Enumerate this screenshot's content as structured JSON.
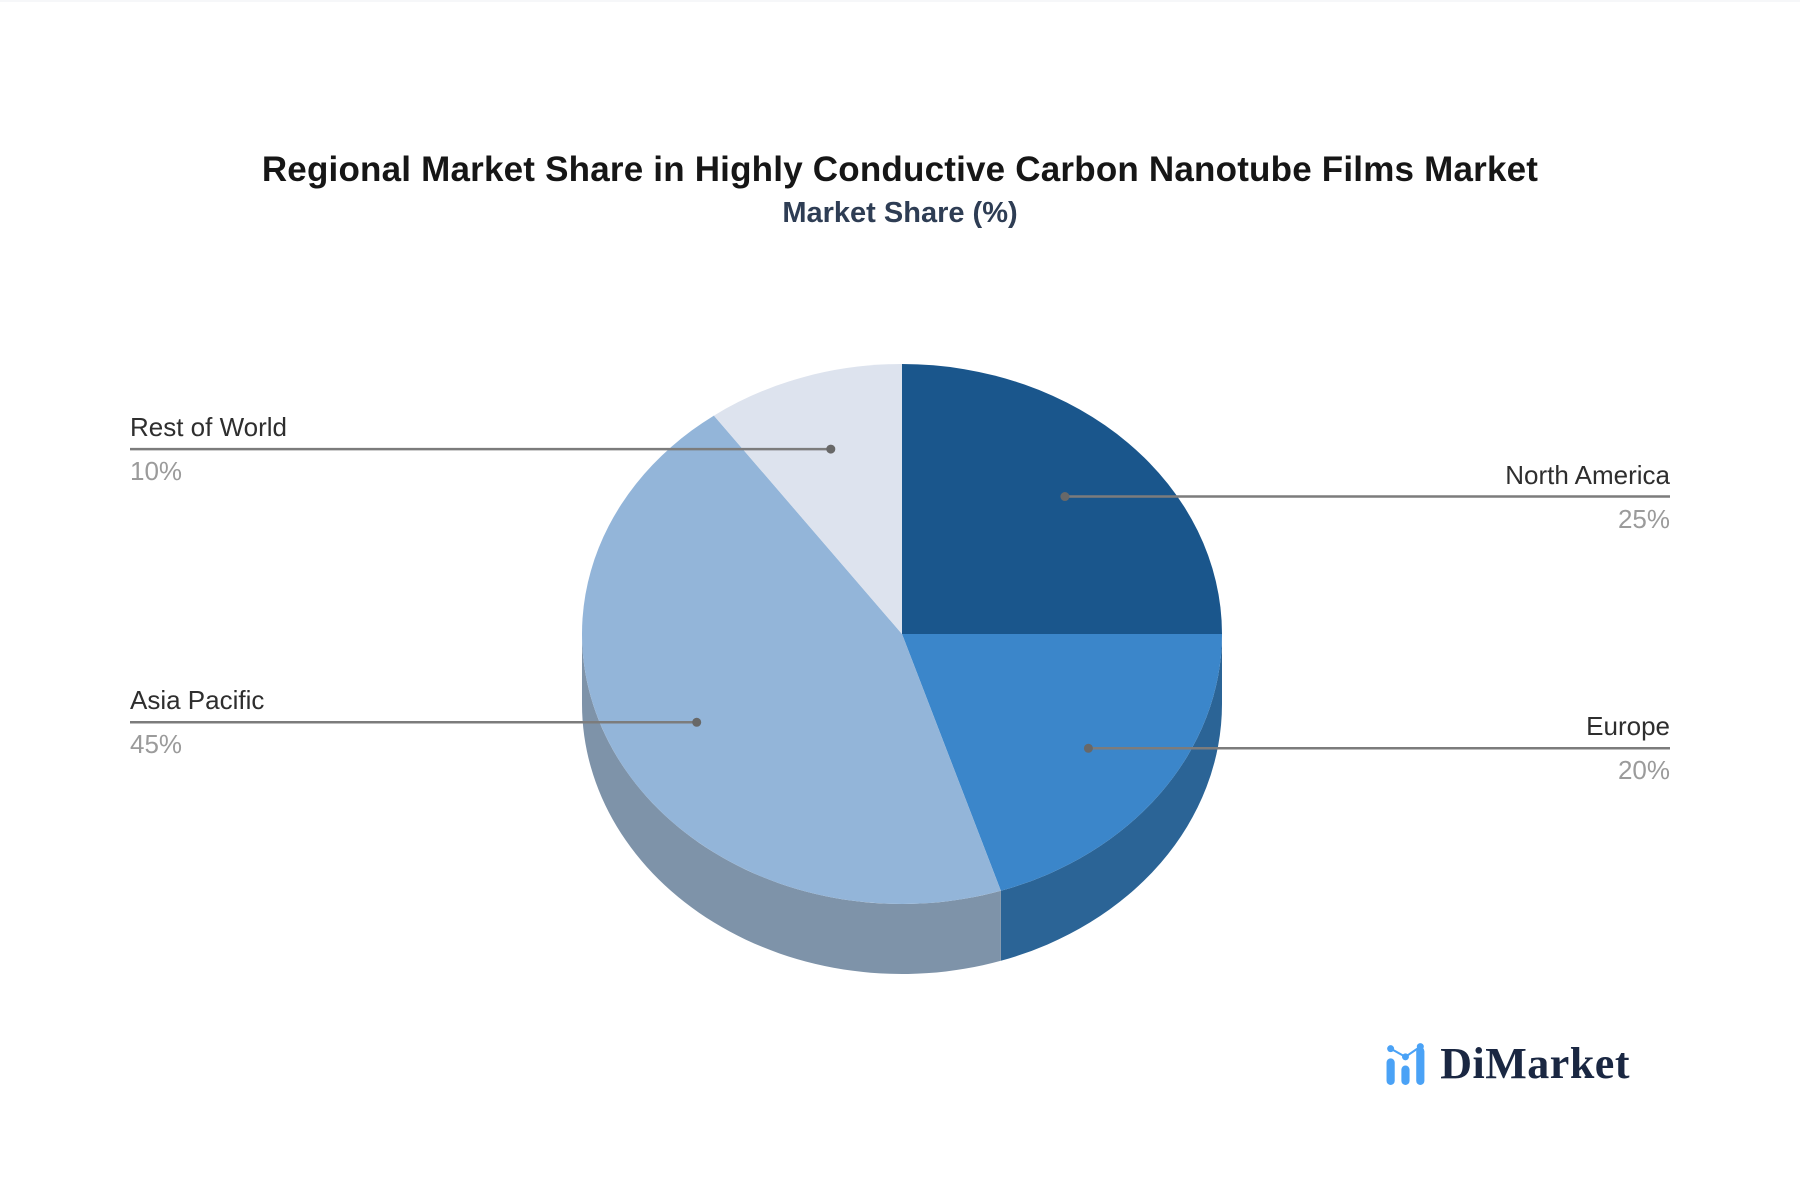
{
  "page": {
    "title": "Regional Market Share in Highly Conductive Carbon Nanotube Films Market",
    "subtitle": "Market Share (%)",
    "title_color": "#161616",
    "subtitle_color": "#2e3d54",
    "background_color": "#ffffff"
  },
  "chart_data": {
    "type": "pie",
    "title": "Regional Market Share in Highly Conductive Carbon Nanotube Films Market",
    "subtitle": "Market Share (%)",
    "unit": "%",
    "style": "3d-pie",
    "start_angle": "12-o-clock",
    "direction": "clockwise",
    "slices": [
      {
        "label": "North America",
        "value": 25,
        "pct_label": "25%",
        "color": "#1a568c",
        "side": "right"
      },
      {
        "label": "Europe",
        "value": 20,
        "pct_label": "20%",
        "color": "#3b86ca",
        "rim_color": "#2b6496",
        "side": "right"
      },
      {
        "label": "Asia Pacific",
        "value": 45,
        "pct_label": "45%",
        "color": "#93b5d9",
        "rim_color": "#7e93a9",
        "side": "left"
      },
      {
        "label": "Rest of World",
        "value": 10,
        "pct_label": "10%",
        "color": "#dde3ee",
        "side": "left"
      }
    ],
    "callout_line_color": "#7c7c7c",
    "callout_dot_color": "#686868",
    "label_color": "#2e2e2e",
    "pct_color": "#9b9b9b",
    "legend": "none",
    "grid": "off"
  },
  "logo": {
    "text": "DiMarket",
    "icon": "bar-chart-icon",
    "text_color": "#1a2742",
    "icon_color": "#4aa2f6"
  }
}
